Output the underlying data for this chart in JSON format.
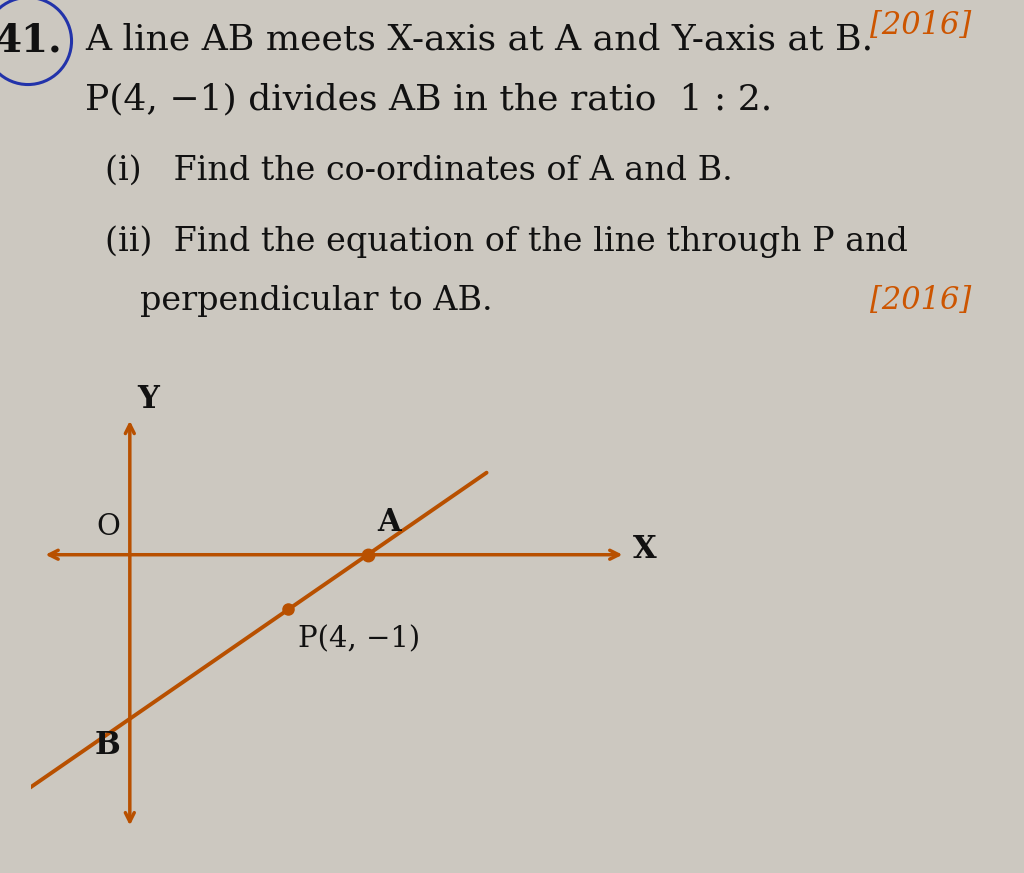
{
  "background_color": "#ccc8c0",
  "line_color": "#b85000",
  "axis_color": "#b85000",
  "dot_color": "#b85000",
  "text_color": "#111111",
  "circle_color": "#2233aa",
  "orange_color": "#cc5500",
  "A": [
    6,
    0
  ],
  "B": [
    0,
    -3
  ],
  "P": [
    4,
    -1
  ],
  "font_size_main": 26,
  "font_size_sub": 24,
  "font_size_diagram": 20,
  "font_size_year": 22,
  "line1": "A line AB meets X-axis at A and Y-axis at B.",
  "line2": "P(4, −1) divides AB in the ratio  1 : 2.",
  "sub1": "(i)   Find the co-ordinates of A and B.",
  "sub2_a": "(ii)  Find the equation of the line through P and",
  "sub2_b": "       perpendicular to AB.",
  "year": "[2016]",
  "num": "41.",
  "O_label": "O",
  "A_label": "A",
  "B_label": "B",
  "P_label": "P(4, −1)",
  "X_label": "X",
  "Y_label": "Y"
}
